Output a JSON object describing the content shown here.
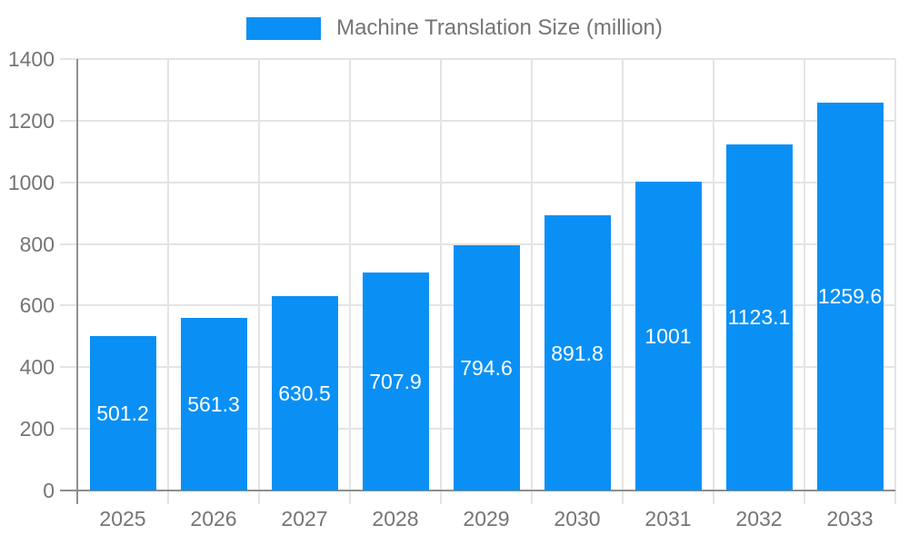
{
  "chart_data": {
    "type": "bar",
    "title": "Machine Translation Size (million)",
    "legend": {
      "label": "Machine Translation Size (million)",
      "position": "top-center",
      "swatch_shape": "rect"
    },
    "categories": [
      "2025",
      "2026",
      "2027",
      "2028",
      "2029",
      "2030",
      "2031",
      "2032",
      "2033"
    ],
    "values": [
      501.2,
      561.3,
      630.5,
      707.9,
      794.6,
      891.8,
      1001,
      1123.1,
      1259.6
    ],
    "value_labels": [
      "501.2",
      "561.3",
      "630.5",
      "707.9",
      "794.6",
      "891.8",
      "1001",
      "1123.1",
      "1259.6"
    ],
    "value_label_position": "inside-center",
    "xlabel": "",
    "ylabel": "",
    "ylim": [
      0,
      1400
    ],
    "yticks": [
      0,
      200,
      400,
      600,
      800,
      1000,
      1200,
      1400
    ],
    "grid": true,
    "colors": {
      "bar": "#0a90f5",
      "bar_label": "#ffffff",
      "axis_line": "#8f8f8f",
      "grid_line": "#e4e4e4",
      "tick_label": "#757575",
      "legend_text": "#757575",
      "background": "#ffffff"
    }
  }
}
